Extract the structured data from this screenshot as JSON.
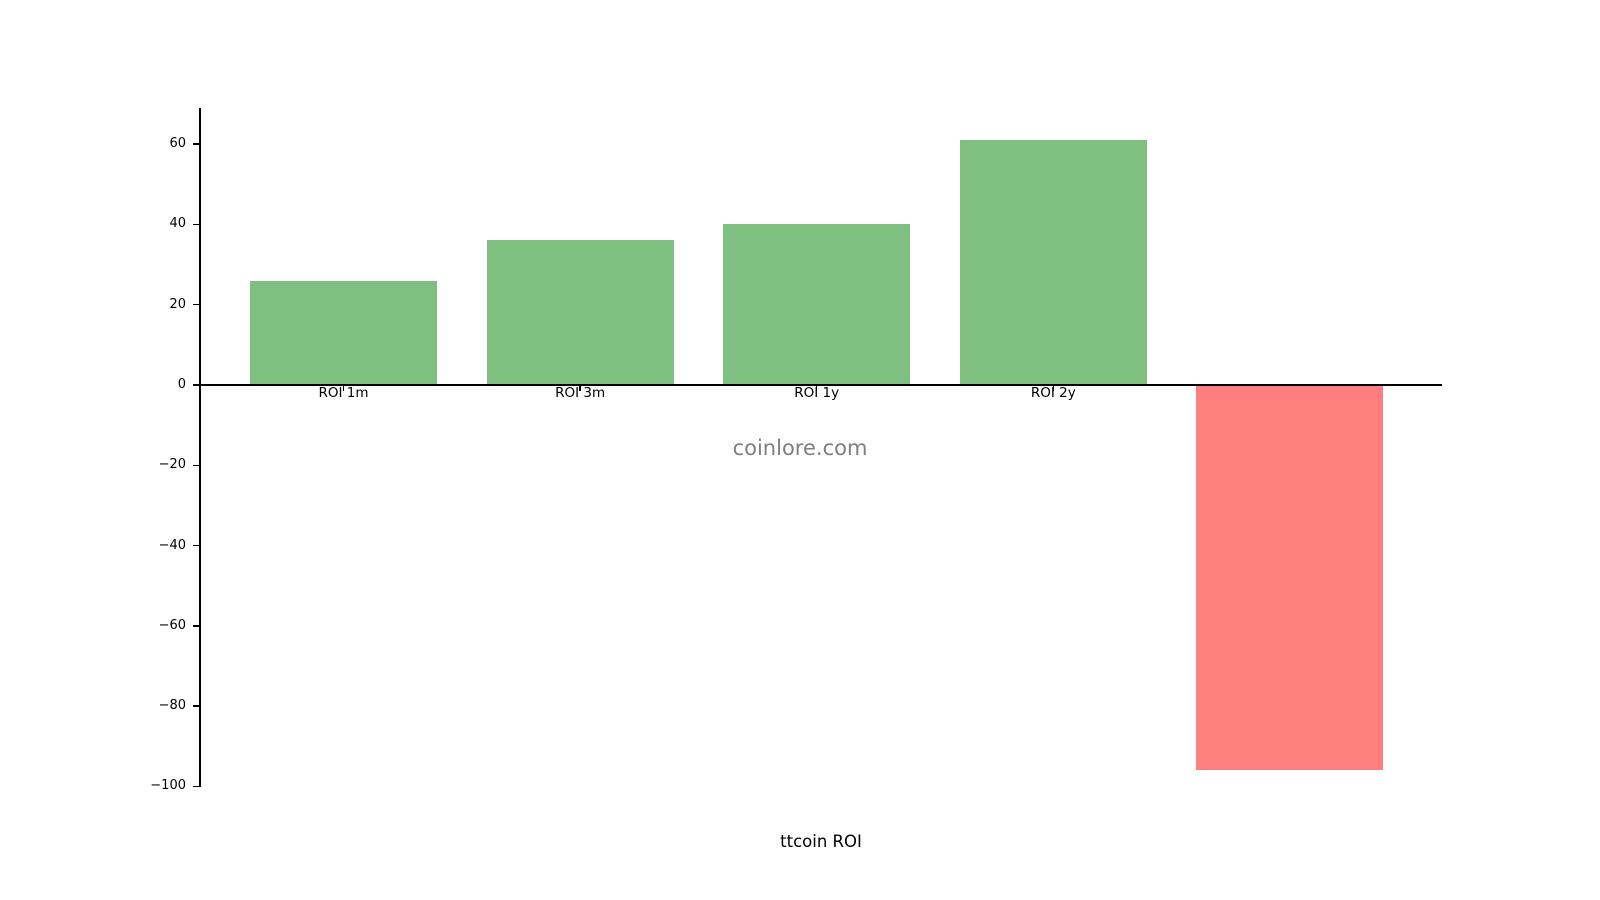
{
  "chart_data": {
    "type": "bar",
    "title": "",
    "xlabel": "ttcoin ROI",
    "ylabel": "",
    "categories": [
      "ROI 1m",
      "ROI 3m",
      "ROI 1y",
      "ROI 2y",
      ""
    ],
    "values": [
      26,
      36,
      40,
      61,
      -96
    ],
    "yticks": [
      60,
      40,
      20,
      0,
      -20,
      -40,
      -60,
      -80,
      -100
    ],
    "ylim": [
      -101,
      69
    ],
    "grid": false,
    "legend_position": "none",
    "bar_colors": [
      "#7fbf7f",
      "#7fbf7f",
      "#7fbf7f",
      "#7fbf7f",
      "#ff7f7f"
    ],
    "positive_color": "#7fbf7f",
    "negative_color": "#ff7f7f",
    "axis_color": "#000000",
    "tick_label_color": "#000000",
    "watermark": "coinlore.com",
    "watermark_color": "#7f7f7f"
  }
}
